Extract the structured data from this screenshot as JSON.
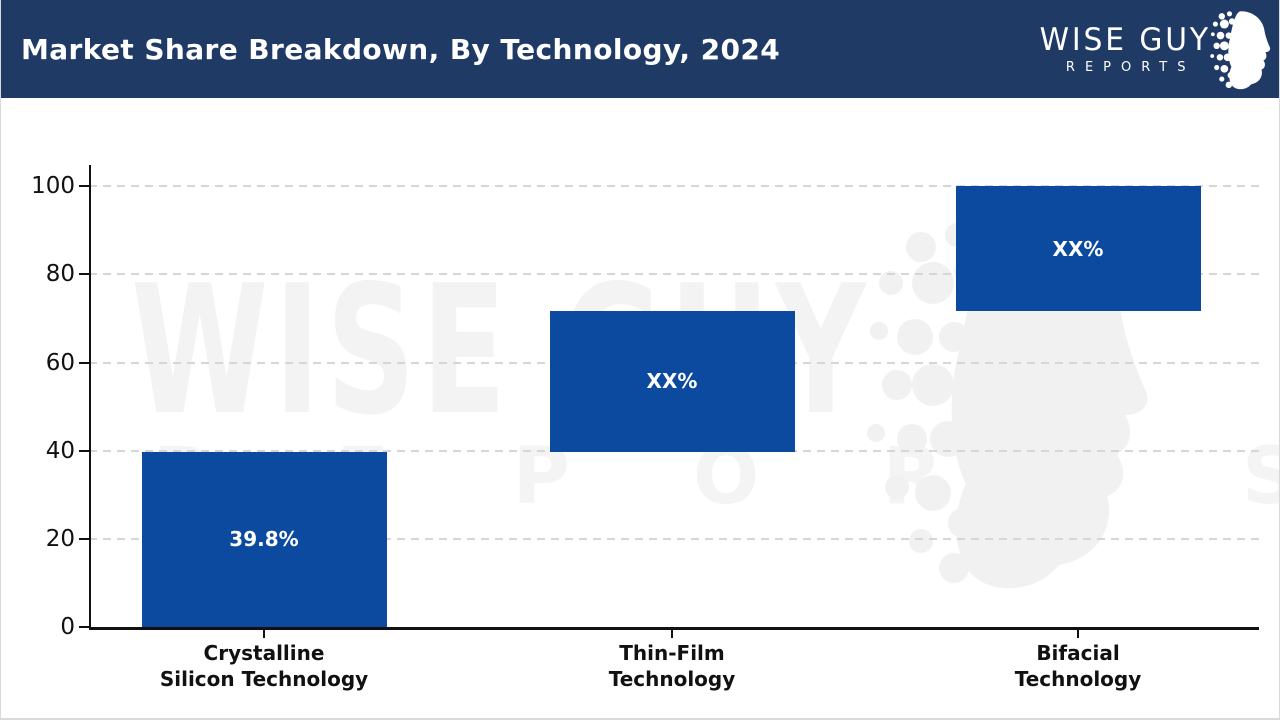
{
  "header": {
    "title": "Market Share Breakdown, By Technology, 2024",
    "logo": {
      "wordmark": "WISE GUY",
      "subtext": "REPORTS"
    }
  },
  "watermark": {
    "wordmark": "WISE GUY",
    "subtext": "R E P O R T S"
  },
  "colors": {
    "header_bg": "#203a66",
    "bar": "#0c4aa0",
    "grid": "#d6d6d6",
    "axis_text": "#111111",
    "bar_label": "#ffffff",
    "watermark": "#f3f3f3"
  },
  "chart_data": {
    "type": "bar",
    "subtype": "floating-stacked-breakdown",
    "title": "Market Share Breakdown, By Technology, 2024",
    "xlabel": "",
    "ylabel": "",
    "ylim": [
      0,
      100
    ],
    "yticks": [
      0,
      20,
      40,
      60,
      80,
      100
    ],
    "grid": "horizontal-dashed",
    "legend": "none",
    "categories": [
      [
        "Crystalline",
        "Silicon Technology"
      ],
      [
        "Thin-Film",
        "Technology"
      ],
      [
        "Bifacial",
        "Technology"
      ]
    ],
    "segments": [
      {
        "category": "Crystalline Silicon Technology",
        "start": 0,
        "end": 39.8,
        "label": "39.8%"
      },
      {
        "category": "Thin-Film Technology",
        "start": 39.8,
        "end": 71.7,
        "label": "XX%"
      },
      {
        "category": "Bifacial Technology",
        "start": 71.7,
        "end": 100,
        "label": "XX%"
      }
    ]
  }
}
